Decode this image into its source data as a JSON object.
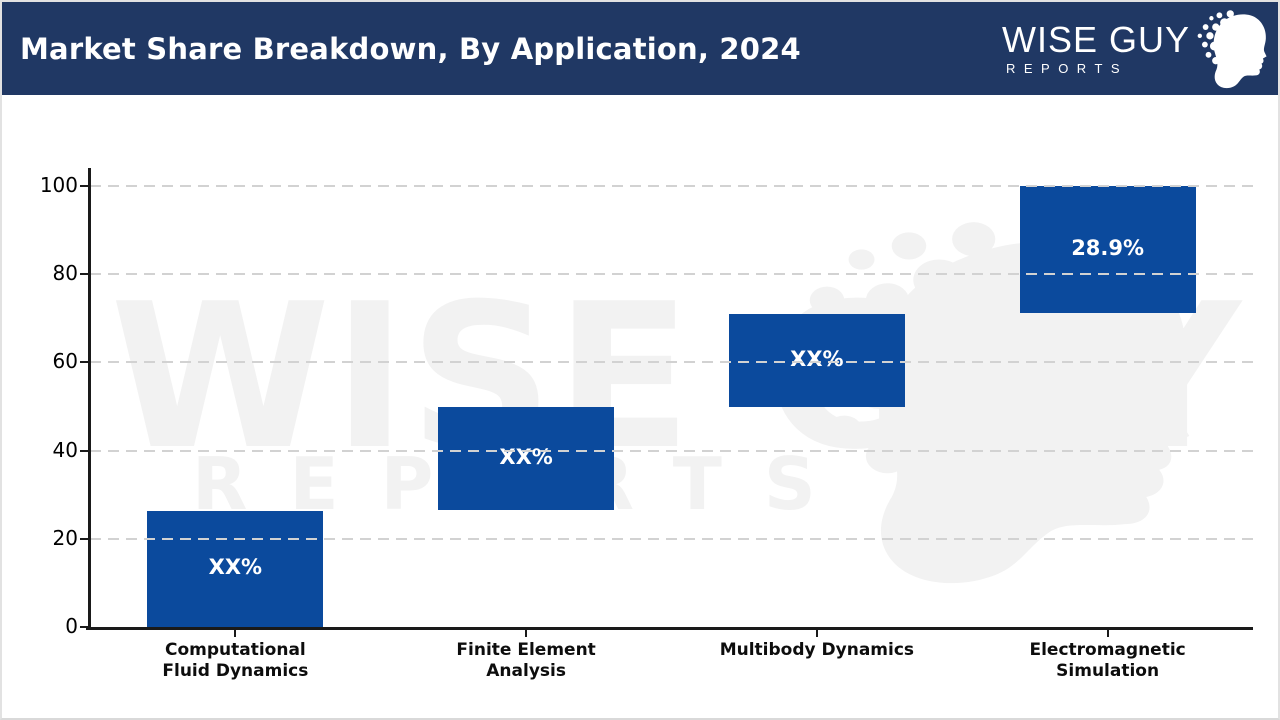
{
  "header": {
    "title": "Market Share Breakdown, By Application, 2024",
    "logo": {
      "line1": "WISE GUY",
      "line2": "REPORTS"
    }
  },
  "watermark": {
    "line1": "WISE GUY",
    "line2": "REPORTS"
  },
  "colors": {
    "header_bg": "#203864",
    "bar": "#0b4a9d",
    "grid": "#d2d2d2",
    "axis": "#1a1a1a",
    "watermark": "#f2f2f2",
    "bar_label": "#ffffff"
  },
  "chart_data": {
    "type": "bar",
    "subtype": "floating-segment-breakdown",
    "title": "Market Share Breakdown, By Application, 2024",
    "xlabel": "",
    "ylabel": "",
    "ylim": [
      0,
      104
    ],
    "yticks": [
      0,
      20,
      40,
      60,
      80,
      100
    ],
    "grid": "horizontal-dashed-over-bars",
    "legend": "none",
    "categories": [
      [
        "Computational",
        "Fluid Dynamics"
      ],
      [
        "Finite Element",
        "Analysis"
      ],
      [
        "Multibody Dynamics"
      ],
      [
        "Electromagnetic",
        "Simulation"
      ]
    ],
    "bars": [
      {
        "label": "XX%",
        "start": 0,
        "end": 26.4
      },
      {
        "label": "XX%",
        "start": 26.6,
        "end": 49.8
      },
      {
        "label": "XX%",
        "start": 49.8,
        "end": 70.9
      },
      {
        "label": "28.9%",
        "start": 71.1,
        "end": 100
      }
    ]
  }
}
